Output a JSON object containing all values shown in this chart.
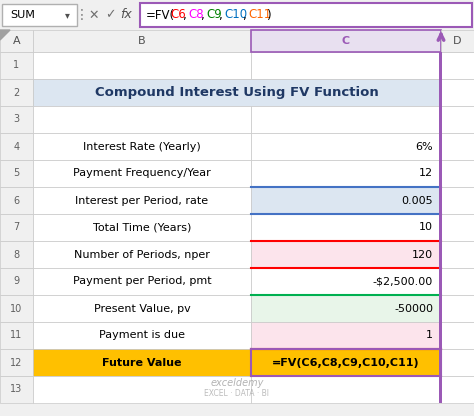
{
  "title": "Compound Interest Using FV Function",
  "formula_bar_text": "=FV(C6,C8,C9,C10,C11)",
  "name_box": "SUM",
  "formula_colored_parts": [
    {
      "text": "=FV(",
      "color": "#000000"
    },
    {
      "text": "C6",
      "color": "#ff0000"
    },
    {
      "text": ",",
      "color": "#000000"
    },
    {
      "text": "C8",
      "color": "#ff00ff"
    },
    {
      "text": ",",
      "color": "#000000"
    },
    {
      "text": "C9",
      "color": "#008000"
    },
    {
      "text": ",",
      "color": "#000000"
    },
    {
      "text": "C10",
      "color": "#0070c0"
    },
    {
      "text": ",",
      "color": "#000000"
    },
    {
      "text": "C11",
      "color": "#ff6600"
    },
    {
      "text": ")",
      "color": "#000000"
    }
  ],
  "excel_bg": "#f0f0f0",
  "grid_color": "#c8c8c8",
  "white": "#ffffff",
  "title_bg": "#dce6f1",
  "title_color": "#1f3864",
  "purple": "#9b59b6",
  "blue": "#4472c4",
  "red": "#ff0000",
  "green": "#00b050",
  "orange_gold": "#ffc000",
  "row6_bg": "#dce6f1",
  "row8_bg": "#fce4ec",
  "row10_bg": "#e8f5e9",
  "row11_bg": "#fce4ec",
  "rows": [
    {
      "num": "1",
      "label": "",
      "value": "",
      "lbg": "#ffffff",
      "vbg": "#ffffff",
      "lbold": false,
      "vbold": false,
      "border": null
    },
    {
      "num": "2",
      "label": "Compound Interest Using FV Function",
      "value": "",
      "lbg": "#dce6f1",
      "vbg": "#dce6f1",
      "lbold": true,
      "vbold": false,
      "border": null,
      "title": true
    },
    {
      "num": "3",
      "label": "",
      "value": "",
      "lbg": "#ffffff",
      "vbg": "#ffffff",
      "lbold": false,
      "vbold": false,
      "border": null
    },
    {
      "num": "4",
      "label": "Interest Rate (Yearly)",
      "value": "6%",
      "lbg": "#ffffff",
      "vbg": "#ffffff",
      "lbold": false,
      "vbold": false,
      "border": null
    },
    {
      "num": "5",
      "label": "Payment Frequency/Year",
      "value": "12",
      "lbg": "#ffffff",
      "vbg": "#ffffff",
      "lbold": false,
      "vbold": false,
      "border": null
    },
    {
      "num": "6",
      "label": "Interest per Period, rate",
      "value": "0.005",
      "lbg": "#ffffff",
      "vbg": "#dce6f1",
      "lbold": false,
      "vbold": false,
      "border": "blue_both"
    },
    {
      "num": "7",
      "label": "Total Time (Years)",
      "value": "10",
      "lbg": "#ffffff",
      "vbg": "#ffffff",
      "lbold": false,
      "vbold": false,
      "border": null
    },
    {
      "num": "8",
      "label": "Number of Periods, nper",
      "value": "120",
      "lbg": "#ffffff",
      "vbg": "#fce4ec",
      "lbold": false,
      "vbold": false,
      "border": "red_both"
    },
    {
      "num": "9",
      "label": "Payment per Period, pmt",
      "value": "-$2,500.00",
      "lbg": "#ffffff",
      "vbg": "#ffffff",
      "lbold": false,
      "vbold": false,
      "border": null
    },
    {
      "num": "10",
      "label": "Present Value, pv",
      "value": "-50000",
      "lbg": "#ffffff",
      "vbg": "#e8f5e9",
      "lbold": false,
      "vbold": false,
      "border": "green_top"
    },
    {
      "num": "11",
      "label": "Payment is due",
      "value": "1",
      "lbg": "#ffffff",
      "vbg": "#fce4ec",
      "lbold": false,
      "vbold": false,
      "border": "red_bottom"
    },
    {
      "num": "12",
      "label": "Future Value",
      "value": "=FV(C6,C8,C9,C10,C11)",
      "lbg": "#ffc000",
      "vbg": "#ffc000",
      "lbold": true,
      "vbold": true,
      "border": "purple_outline"
    },
    {
      "num": "13",
      "label": "",
      "value": "",
      "lbg": "#ffffff",
      "vbg": "#ffffff",
      "lbold": false,
      "vbold": false,
      "border": null
    }
  ]
}
